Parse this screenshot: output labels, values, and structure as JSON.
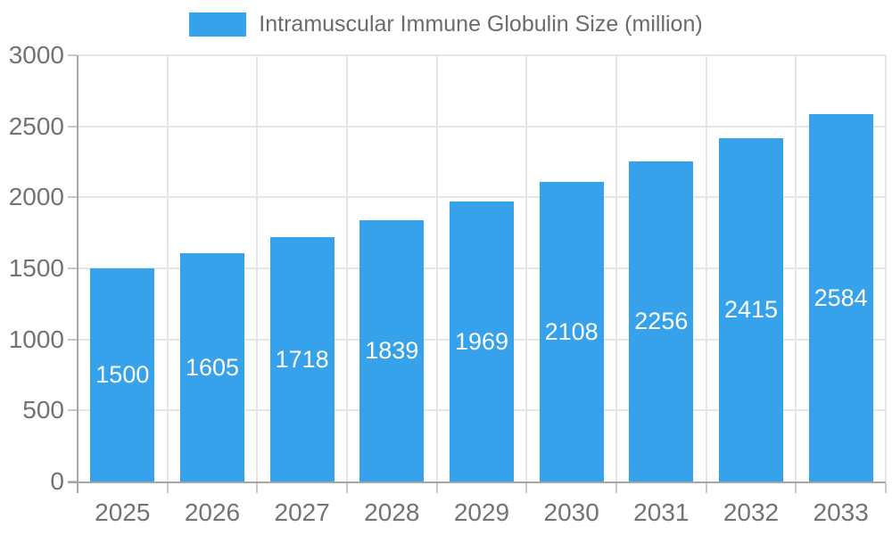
{
  "chart_data": {
    "type": "bar",
    "legend_position": "top",
    "categories": [
      "2025",
      "2026",
      "2027",
      "2028",
      "2029",
      "2030",
      "2031",
      "2032",
      "2033"
    ],
    "series": [
      {
        "name": "Intramuscular Immune Globulin Size (million)",
        "color": "#36A2EB",
        "values": [
          1500,
          1605,
          1718,
          1839,
          1969,
          2108,
          2256,
          2415,
          2584
        ]
      }
    ],
    "xlabel": "",
    "ylabel": "",
    "ylim": [
      0,
      3000
    ],
    "yticks": [
      0,
      500,
      1000,
      1500,
      2000,
      2500,
      3000
    ],
    "grid": true,
    "bar_value_labels_visible": true,
    "colors": {
      "bar": "#36A2EB",
      "bar_label": "#FFFFFF",
      "axis_text": "#737373",
      "legend_text": "#6B6B6B",
      "gridline": "#E6E6E6",
      "axis_line": "#A6A6A6",
      "tick": "#C9C9C9",
      "background": "#FFFFFF"
    }
  }
}
